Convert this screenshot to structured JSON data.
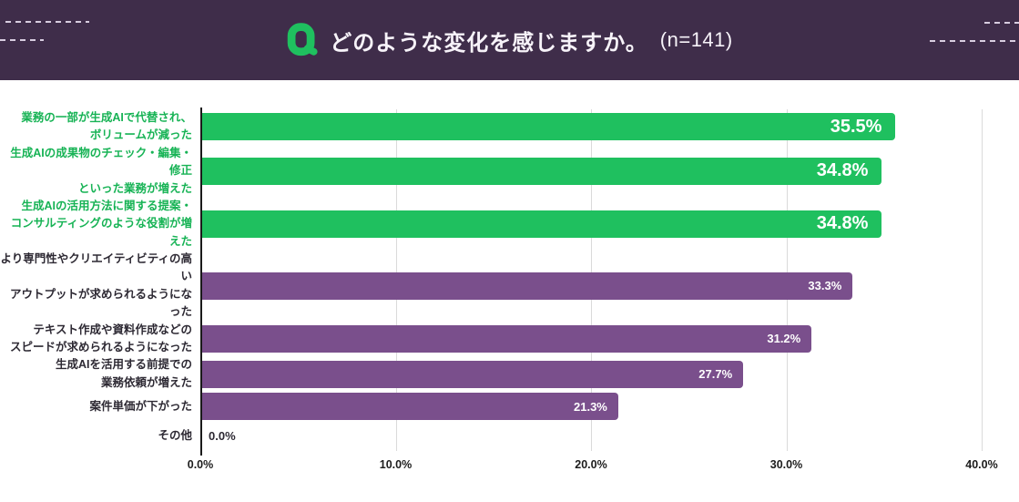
{
  "header": {
    "title": "どのような変化を感じますか。",
    "sample_size": "(n=141)",
    "icon": "q-speech-bubble-icon"
  },
  "colors": {
    "header_bg": "#3f2d4a",
    "accent_green": "#1fc05f",
    "accent_purple": "#7a4f8c",
    "green_label_text": "#17b355",
    "dark_label_text": "#2d2933",
    "gridline": "#dadada",
    "axis": "#1a1a1a",
    "dash_decoration": "#d8cde0",
    "value_text": "#ffffff"
  },
  "chart_data": {
    "type": "bar",
    "orientation": "horizontal",
    "title": "どのような変化を感じますか。(n=141)",
    "sample_size": 141,
    "xlabel": "",
    "ylabel": "",
    "xlim": [
      0,
      40
    ],
    "grid": "vertical",
    "legend": "none",
    "x_tick_labels": [
      "0.0%",
      "10.0%",
      "20.0%",
      "30.0%",
      "40.0%"
    ],
    "x_tick_values": [
      0,
      10,
      20,
      30,
      40
    ],
    "categories": [
      "業務の一部が生成AIで代替され、ボリュームが減った",
      "生成AIの成果物のチェック・編集・修正といった業務が増えた",
      "生成AIの活用方法に関する提案・コンサルティングのような役割が増えた",
      "より専門性やクリエイティビティの高いアウトプットが求められるようになった",
      "テキスト作成や資料作成などのスピードが求められるようになった",
      "生成AIを活用する前提での業務依頼が増えた",
      "案件単価が下がった",
      "その他"
    ],
    "category_lines": [
      [
        "業務の一部が生成AIで代替され、",
        "ボリュームが減った"
      ],
      [
        "生成AIの成果物のチェック・編集・修正",
        "といった業務が増えた"
      ],
      [
        "生成AIの活用方法に関する提案・",
        "コンサルティングのような役割が増えた"
      ],
      [
        "より専門性やクリエイティビティの高い",
        "アウトプットが求められるようになった"
      ],
      [
        "テキスト作成や資料作成などの",
        "スピードが求められるようになった"
      ],
      [
        "生成AIを活用する前提での",
        "業務依頼が増えた"
      ],
      [
        "案件単価が下がった"
      ],
      [
        "その他"
      ]
    ],
    "values": [
      35.5,
      34.8,
      34.8,
      33.3,
      31.2,
      27.7,
      21.3,
      0.0
    ],
    "value_labels": [
      "35.5%",
      "34.8%",
      "34.8%",
      "33.3%",
      "31.2%",
      "27.7%",
      "21.3%",
      "0.0%"
    ],
    "bar_color_keys": [
      "green",
      "green",
      "green",
      "purple",
      "purple",
      "purple",
      "purple",
      "none"
    ],
    "value_label_style": [
      "large",
      "large",
      "large",
      "small",
      "small",
      "small",
      "small",
      "zero"
    ],
    "category_color_keys": [
      "green",
      "green",
      "green",
      "dark",
      "dark",
      "dark",
      "dark",
      "dark"
    ]
  }
}
